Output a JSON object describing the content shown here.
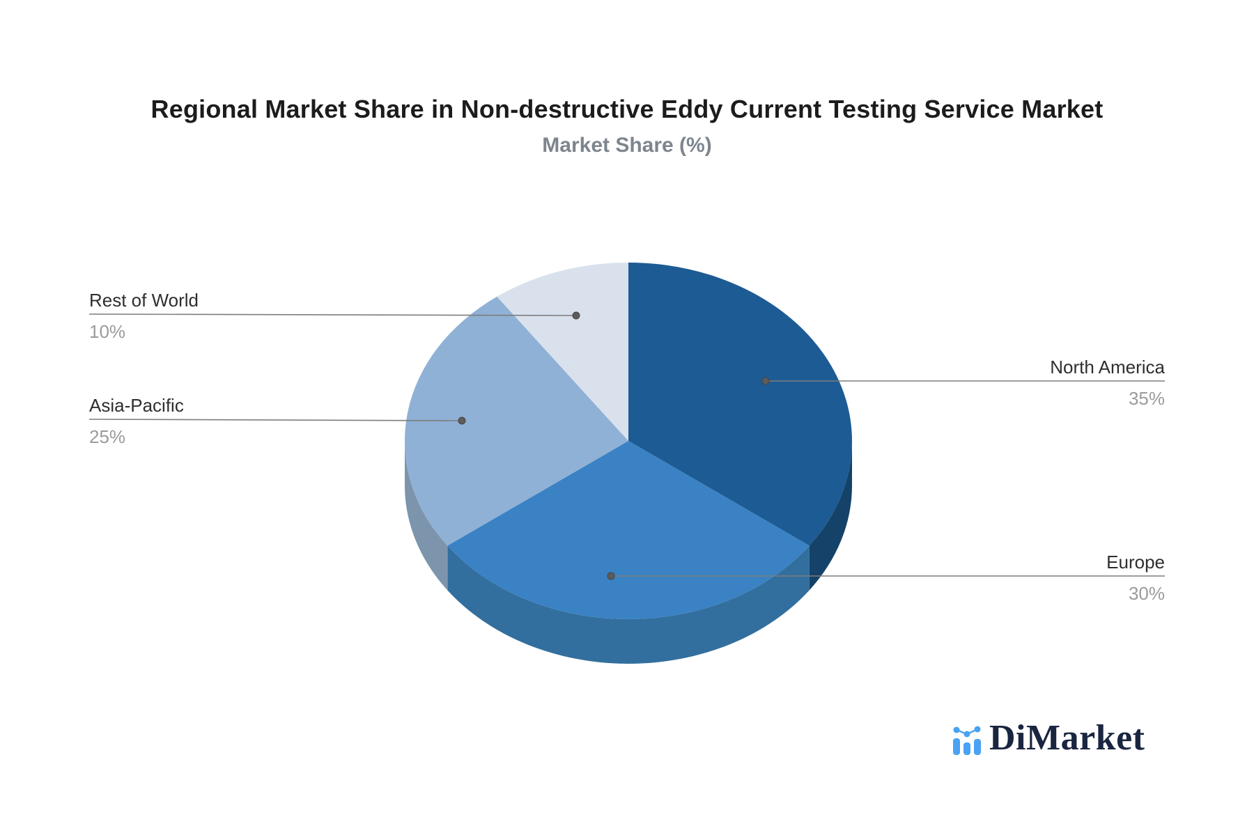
{
  "header": {
    "title": "Regional Market Share in Non-destructive Eddy Current Testing Service Market",
    "subtitle": "Market Share (%)"
  },
  "logo": {
    "text": "DiMarket",
    "icon": "bar-chart-sparkline-icon",
    "icon_color": "#4aa2f2",
    "text_color": "#1a2540"
  },
  "chart_data": {
    "type": "pie",
    "style": "3d",
    "title": "Regional Market Share in Non-destructive Eddy Current Testing Service Market",
    "subtitle": "Market Share (%)",
    "unit": "%",
    "start_angle": "12-o-clock",
    "direction": "clockwise",
    "legend_position": "none",
    "slices": [
      {
        "label": "North America",
        "value": 35,
        "percent_label": "35%",
        "color": "#1d5b94",
        "side_color": "#154269"
      },
      {
        "label": "Europe",
        "value": 30,
        "percent_label": "30%",
        "color": "#3a82c4",
        "side_color": "#326f9e"
      },
      {
        "label": "Asia-Pacific",
        "value": 25,
        "percent_label": "25%",
        "color": "#8fb1d6",
        "side_color": "#7d95ac"
      },
      {
        "label": "Rest of World",
        "value": 10,
        "percent_label": "10%",
        "color": "#d9e1ed",
        "side_color": "#c2ccd9"
      }
    ],
    "leader_line_color": "#7d7d7d",
    "leader_dot_color": "#5c5c5c"
  }
}
